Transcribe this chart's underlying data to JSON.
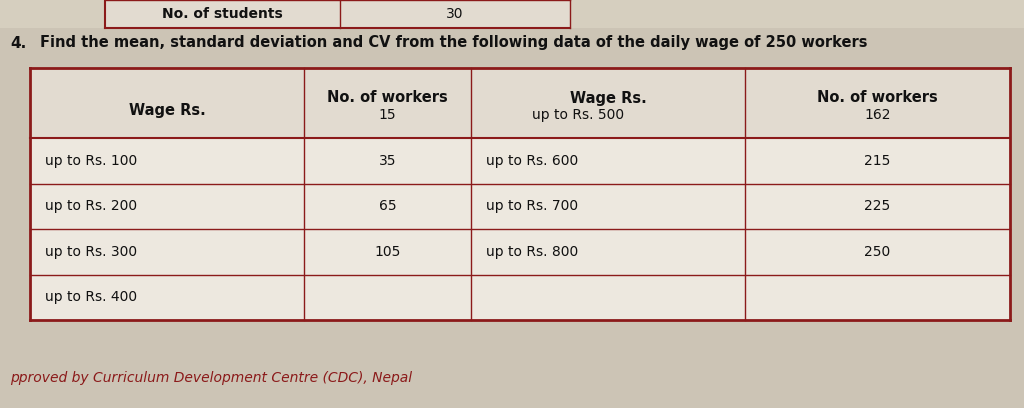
{
  "background_color": "#ccc4b5",
  "top_strip_color": "#d0c9bc",
  "top_text": "No. of students",
  "top_number": "30",
  "question_number": "4.",
  "question_text": "Find the mean, standard deviation and CV from the following data of the daily wage of 250 workers",
  "table": {
    "col1_header": "Wage Rs.",
    "col2_header": "No. of workers",
    "col3_header": "Wage Rs.",
    "col4_header": "No. of workers",
    "left_wages": [
      "up to Rs. 100",
      "up to Rs. 200",
      "up to Rs. 300",
      "up to Rs. 400"
    ],
    "left_workers": [
      "15",
      "35",
      "65",
      "105"
    ],
    "right_wages": [
      "up to Rs. 500",
      "up to Rs. 600",
      "up to Rs. 700",
      "up to Rs. 800"
    ],
    "right_workers": [
      "162",
      "215",
      "225",
      "250"
    ]
  },
  "footer_text": "pproved by Curriculum Development Centre (CDC), Nepal",
  "table_border_color": "#8b1a1a",
  "header_bg": "#e2dbd0",
  "cell_bg": "#ede8df",
  "text_color": "#111111",
  "italic_color": "#8b1a1a",
  "top_strip_bg": "#d6cfbf"
}
